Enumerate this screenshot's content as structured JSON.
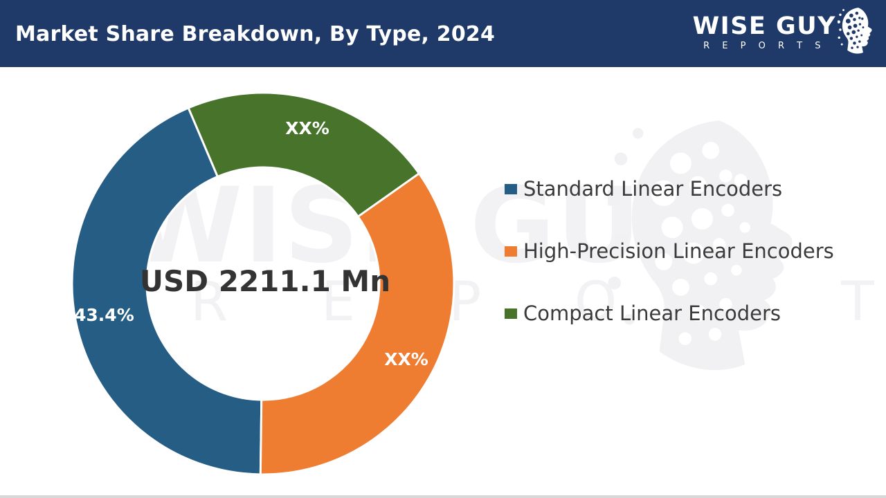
{
  "header": {
    "title": "Market Share Breakdown, By Type, 2024",
    "bg_color": "#1f3a68",
    "logo": {
      "line1": "WISE GUY",
      "line2": "R E P O R T S"
    }
  },
  "watermark": {
    "line1": "WISE GUY",
    "line2": "R E P O R T S"
  },
  "chart_data": {
    "type": "pie",
    "subtype": "donut",
    "title": "Market Share Breakdown, By Type, 2024",
    "center_label": "USD 2211.1 Mn",
    "unit": "USD Mn",
    "total_value": 2211.1,
    "start_angle_deg": 113,
    "direction": "counterclockwise",
    "inner_radius_ratio": 0.61,
    "legend_position": "right",
    "segments": [
      {
        "name": "Standard Linear Encoders",
        "label": "43.4%",
        "value_pct": 43.4,
        "value_hidden": false,
        "color": "#265d84"
      },
      {
        "name": "High-Precision Linear Encoders",
        "label": "XX%",
        "value_pct": 35.0,
        "value_hidden": true,
        "color": "#ee7d32"
      },
      {
        "name": "Compact Linear Encoders",
        "label": "XX%",
        "value_pct": 21.6,
        "value_hidden": true,
        "color": "#47742a"
      }
    ]
  }
}
